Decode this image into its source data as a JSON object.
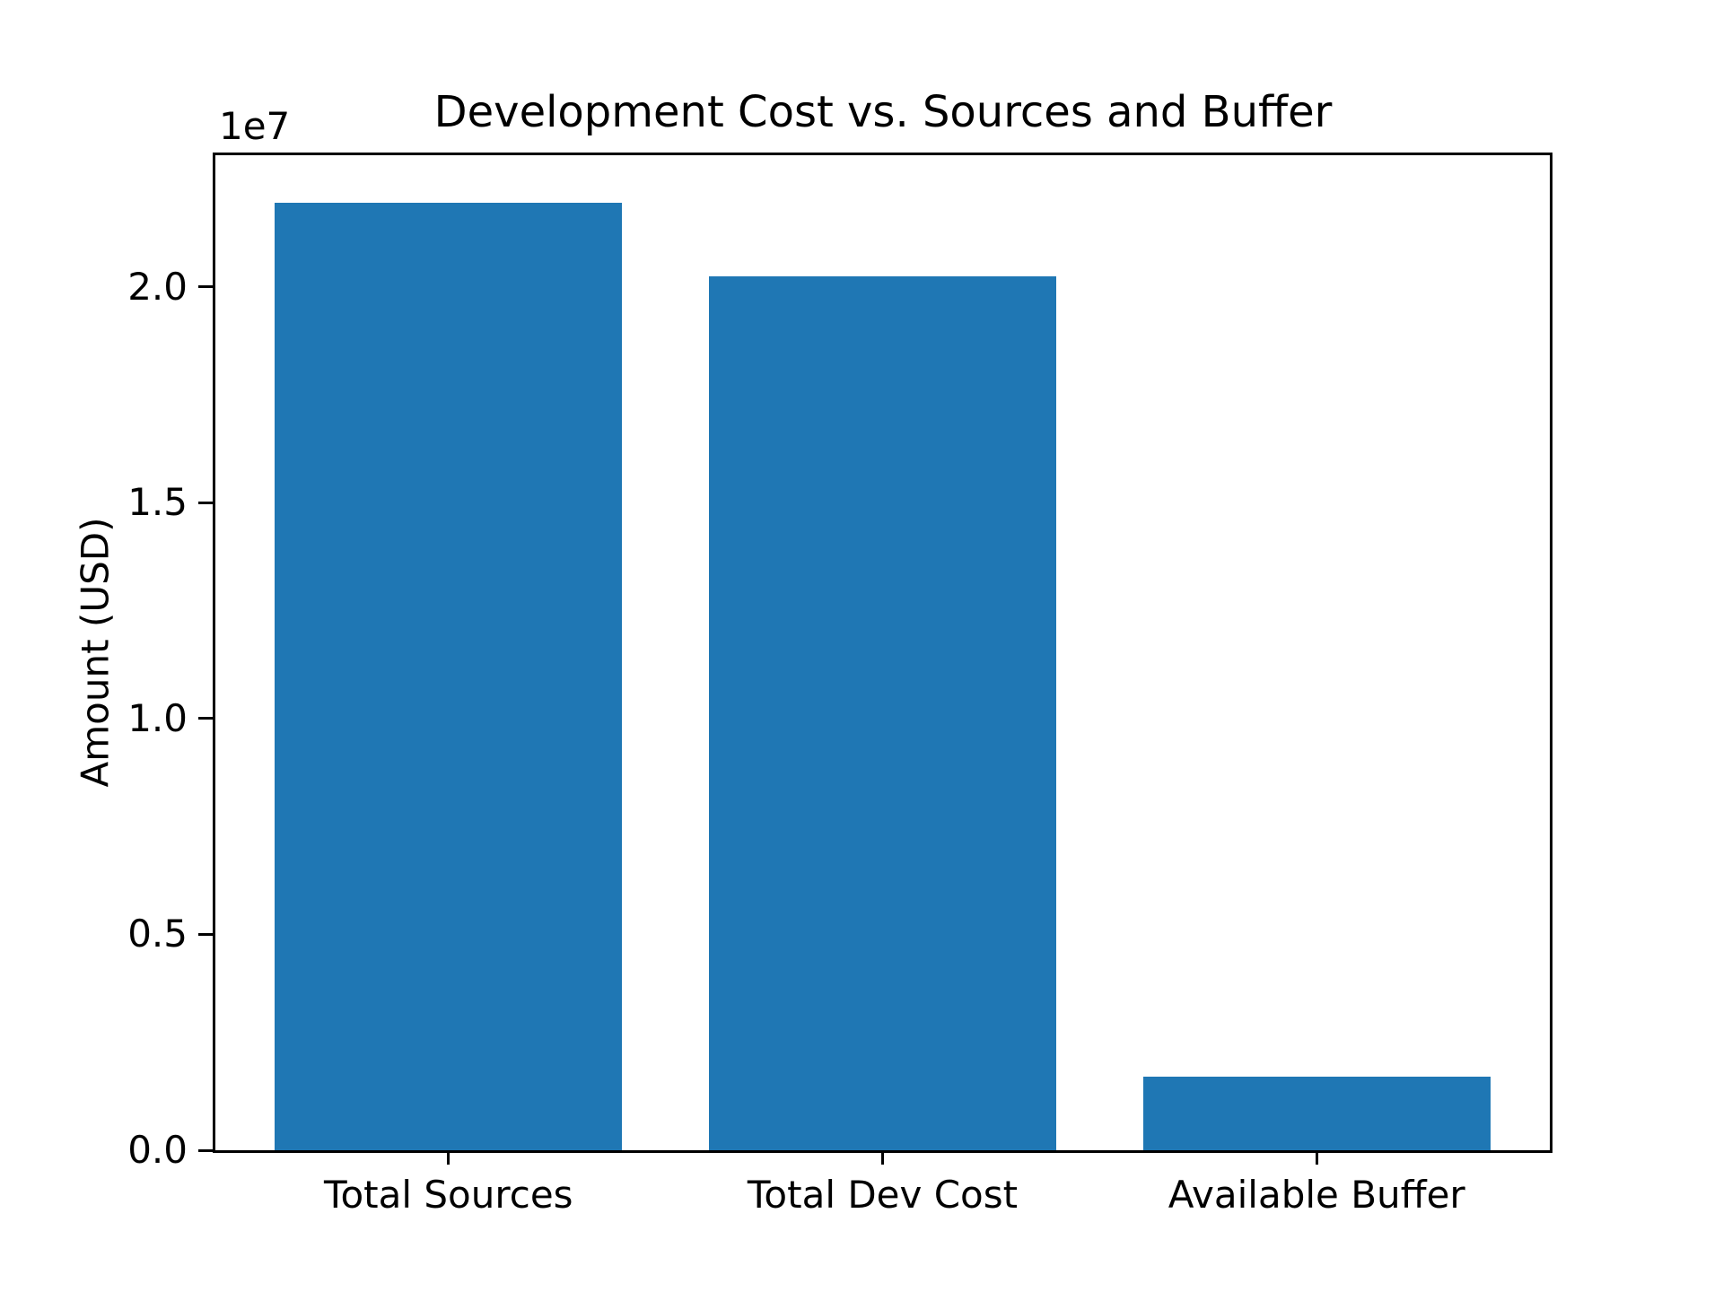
{
  "chart_data": {
    "type": "bar",
    "title": "Development Cost vs. Sources and Buffer",
    "categories": [
      "Total Sources",
      "Total Dev Cost",
      "Available Buffer"
    ],
    "values": [
      21950000,
      20250000,
      1700000
    ],
    "xlabel": "",
    "ylabel": "Amount (USD)",
    "ylim": [
      0,
      23056000
    ],
    "ytick_values": [
      0,
      5000000,
      10000000,
      15000000,
      20000000
    ],
    "ytick_labels": [
      "0.0",
      "0.5",
      "1.0",
      "1.5",
      "2.0"
    ],
    "offset_text": "1e7",
    "bar_color": "#1f77b4",
    "grid": false,
    "legend_position": "none",
    "background_color": "#ffffff",
    "spine_color": "#000000"
  }
}
